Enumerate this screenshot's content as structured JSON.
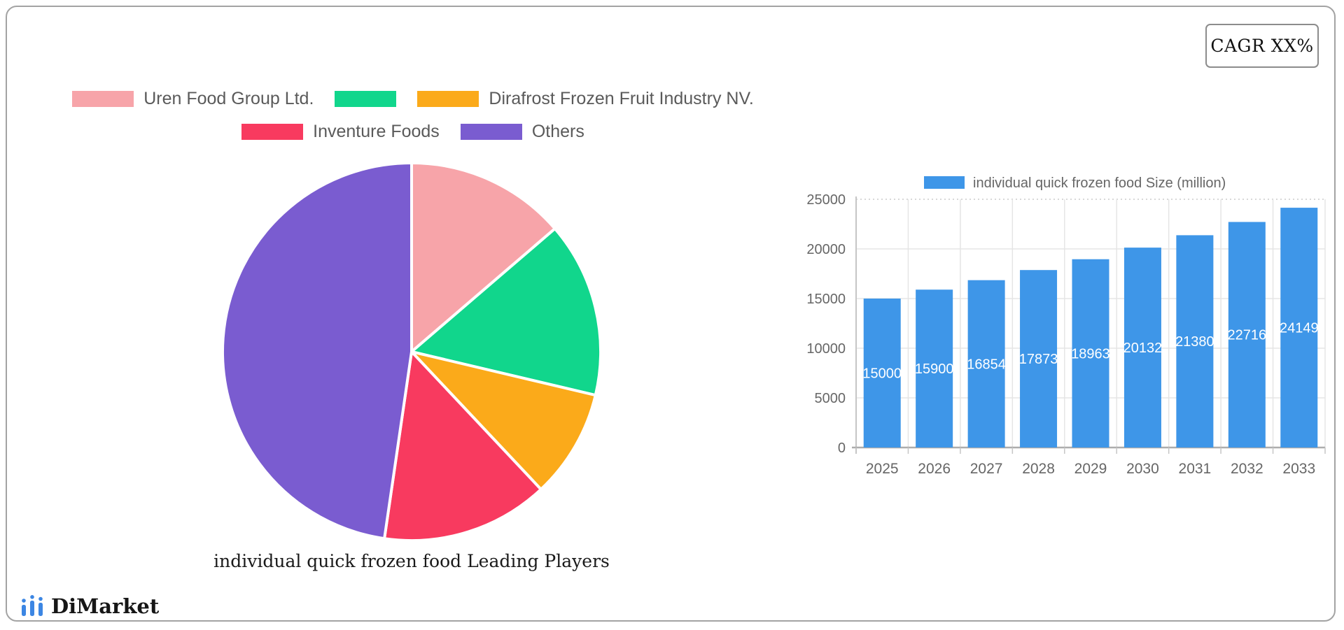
{
  "cagr_badge": {
    "label": "CAGR XX%"
  },
  "logo": {
    "text": "DiMarket",
    "icon_color": "#3c86e3"
  },
  "chart_data": [
    {
      "type": "pie",
      "title": "individual quick frozen food Leading Players",
      "legend_position": "top",
      "slices": [
        {
          "label": "Uren Food Group Ltd.",
          "value": 13.7,
          "color": "#f7a4a9",
          "legend_row": 0
        },
        {
          "label": "",
          "value": 15.0,
          "color": "#11d68c",
          "legend_row": 0
        },
        {
          "label": "Dirafrost Frozen Fruit Industry NV.",
          "value": 9.3,
          "color": "#fbaa1a",
          "legend_row": 0
        },
        {
          "label": "Inventure Foods",
          "value": 14.3,
          "color": "#f83a5f",
          "legend_row": 1
        },
        {
          "label": "Others",
          "value": 47.7,
          "color": "#7a5cd0",
          "legend_row": 1
        }
      ]
    },
    {
      "type": "bar",
      "legend": "individual quick frozen food Size (million)",
      "legend_position": "top",
      "categories": [
        "2025",
        "2026",
        "2027",
        "2028",
        "2029",
        "2030",
        "2031",
        "2032",
        "2033"
      ],
      "values": [
        15000,
        15900,
        16854,
        17873,
        18963,
        20132,
        21380,
        22716,
        24149
      ],
      "bar_color": "#3e96e8",
      "value_label_color": "#ffffff",
      "ylim": [
        0,
        25000
      ],
      "yticks": [
        0,
        5000,
        10000,
        15000,
        20000,
        25000
      ],
      "grid": true
    }
  ]
}
